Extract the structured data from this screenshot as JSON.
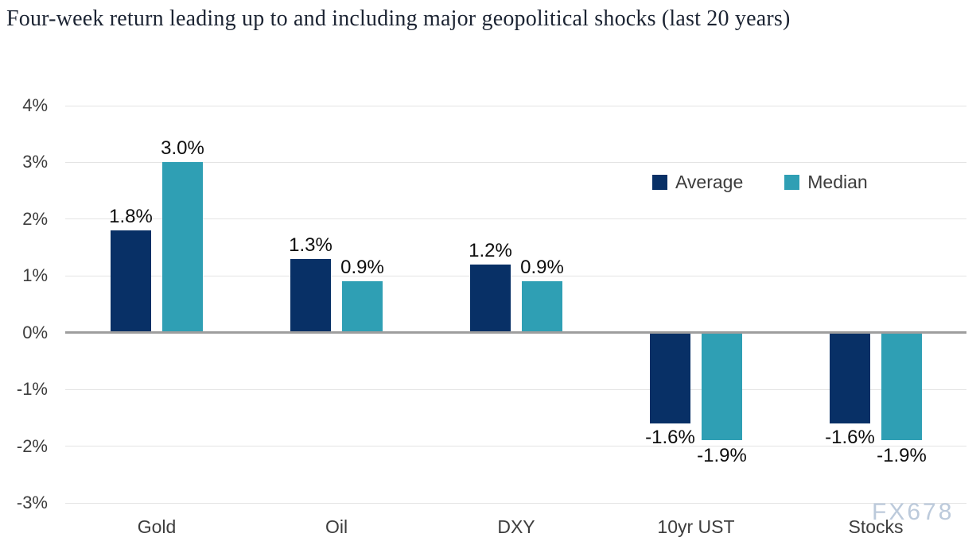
{
  "watermark": "FX678",
  "colors": {
    "average_bar": "#083066",
    "median_bar": "#2f9fb4",
    "gridline": "#e4e4e4",
    "zero_line": "#9e9e9e",
    "title_text": "#1c2433",
    "axis_text": "#3d3d3d",
    "value_text": "#0d0d0d",
    "watermark_text": "#bccadb"
  },
  "chart_data": {
    "type": "bar",
    "title": "Four-week return leading up to and including major geopolitical shocks (last 20 years)",
    "xlabel": "",
    "ylabel": "",
    "categories": [
      "Gold",
      "Oil",
      "DXY",
      "10yr UST",
      "Stocks"
    ],
    "series": [
      {
        "name": "Average",
        "color": "#083066",
        "values": [
          1.8,
          1.3,
          1.2,
          -1.6,
          -1.6
        ],
        "labels": [
          "1.8%",
          "1.3%",
          "1.2%",
          "-1.6%",
          "-1.6%"
        ]
      },
      {
        "name": "Median",
        "color": "#2f9fb4",
        "values": [
          3.0,
          0.9,
          0.9,
          -1.9,
          -1.9
        ],
        "labels": [
          "3.0%",
          "0.9%",
          "0.9%",
          "-1.9%",
          "-1.9%"
        ]
      }
    ],
    "ylim": [
      -3,
      4
    ],
    "yticks": [
      {
        "value": 4,
        "label": "4%"
      },
      {
        "value": 3,
        "label": "3%"
      },
      {
        "value": 2,
        "label": "2%"
      },
      {
        "value": 1,
        "label": "1%"
      },
      {
        "value": 0,
        "label": "0%"
      },
      {
        "value": -1,
        "label": "-1%"
      },
      {
        "value": -2,
        "label": "-2%"
      },
      {
        "value": -3,
        "label": "-3%"
      }
    ],
    "grid": true,
    "legend_position": "upper-right-inside"
  }
}
